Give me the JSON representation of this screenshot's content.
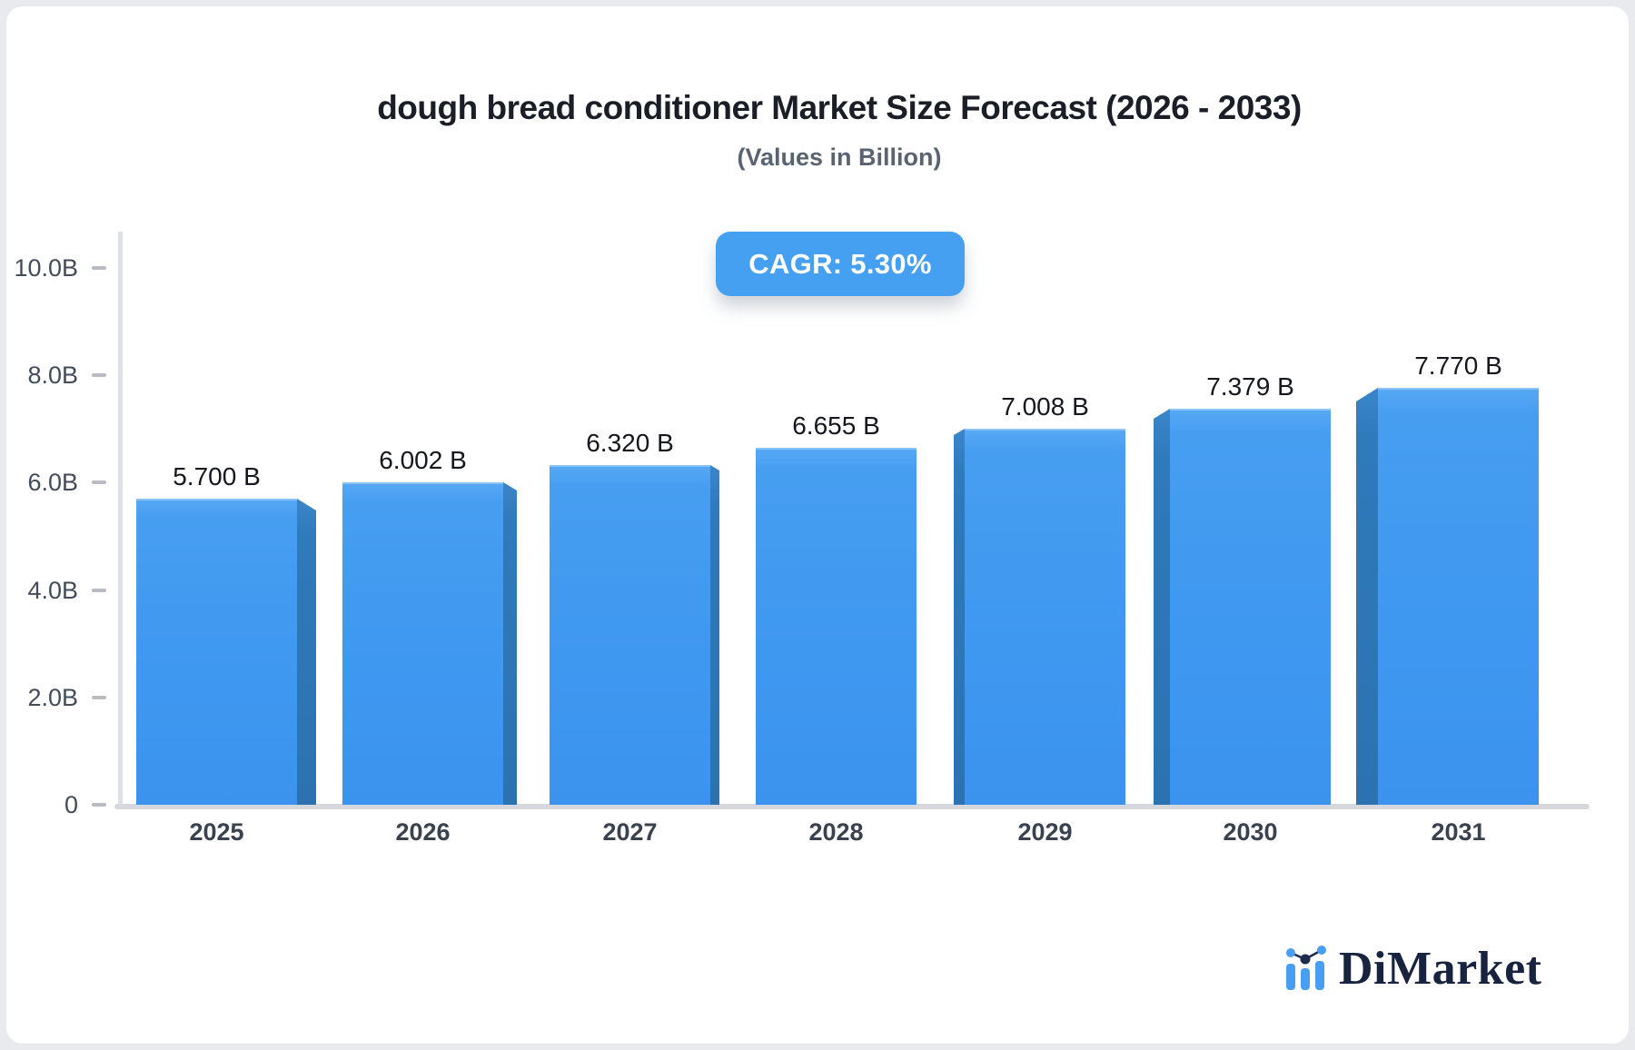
{
  "header": {
    "title": "dough bread conditioner Market Size Forecast (2026 - 2033)",
    "subtitle": "(Values in Billion)",
    "cagr_badge": "CAGR: 5.30%"
  },
  "chart_data": {
    "type": "bar",
    "title": "dough bread conditioner Market Size Forecast (2026 - 2033)",
    "subtitle": "(Values in Billion)",
    "unit": "Billion",
    "cagr_percent": 5.3,
    "categories": [
      "2025",
      "2026",
      "2027",
      "2028",
      "2029",
      "2030",
      "2031"
    ],
    "values": [
      5.7,
      6.002,
      6.32,
      6.655,
      7.008,
      7.379,
      7.77
    ],
    "value_labels": [
      "5.700 B",
      "6.002 B",
      "6.320 B",
      "6.655 B",
      "7.008 B",
      "7.379 B",
      "7.770 B"
    ],
    "ylim": [
      0,
      10
    ],
    "ytick_values": [
      0,
      2,
      4,
      6,
      8,
      10
    ],
    "ytick_labels": [
      "0",
      "2.0B",
      "4.0B",
      "6.0B",
      "8.0B",
      "10.0B"
    ],
    "grid": false,
    "legend": false,
    "bar_color": "#4299F0",
    "bar_side_color": "#2F7ABB",
    "style": "3d-perspective-center"
  },
  "footer": {
    "brand": "DiMarket",
    "logo_icon": "mini-bar-chart-icon"
  },
  "colors": {
    "accent_blue": "#45A0F1",
    "axis_line": "#D7DADE",
    "tick": "#B7BCC3",
    "axis_label_text": "#424C5A",
    "category_label_text": "#39424E",
    "value_label_text": "#14181E",
    "title_text": "#1A1E26",
    "subtitle_text": "#5A6370",
    "brand_navy": "#18233F",
    "card_background": "#FFFFFF",
    "page_background": "#E8EAED"
  }
}
